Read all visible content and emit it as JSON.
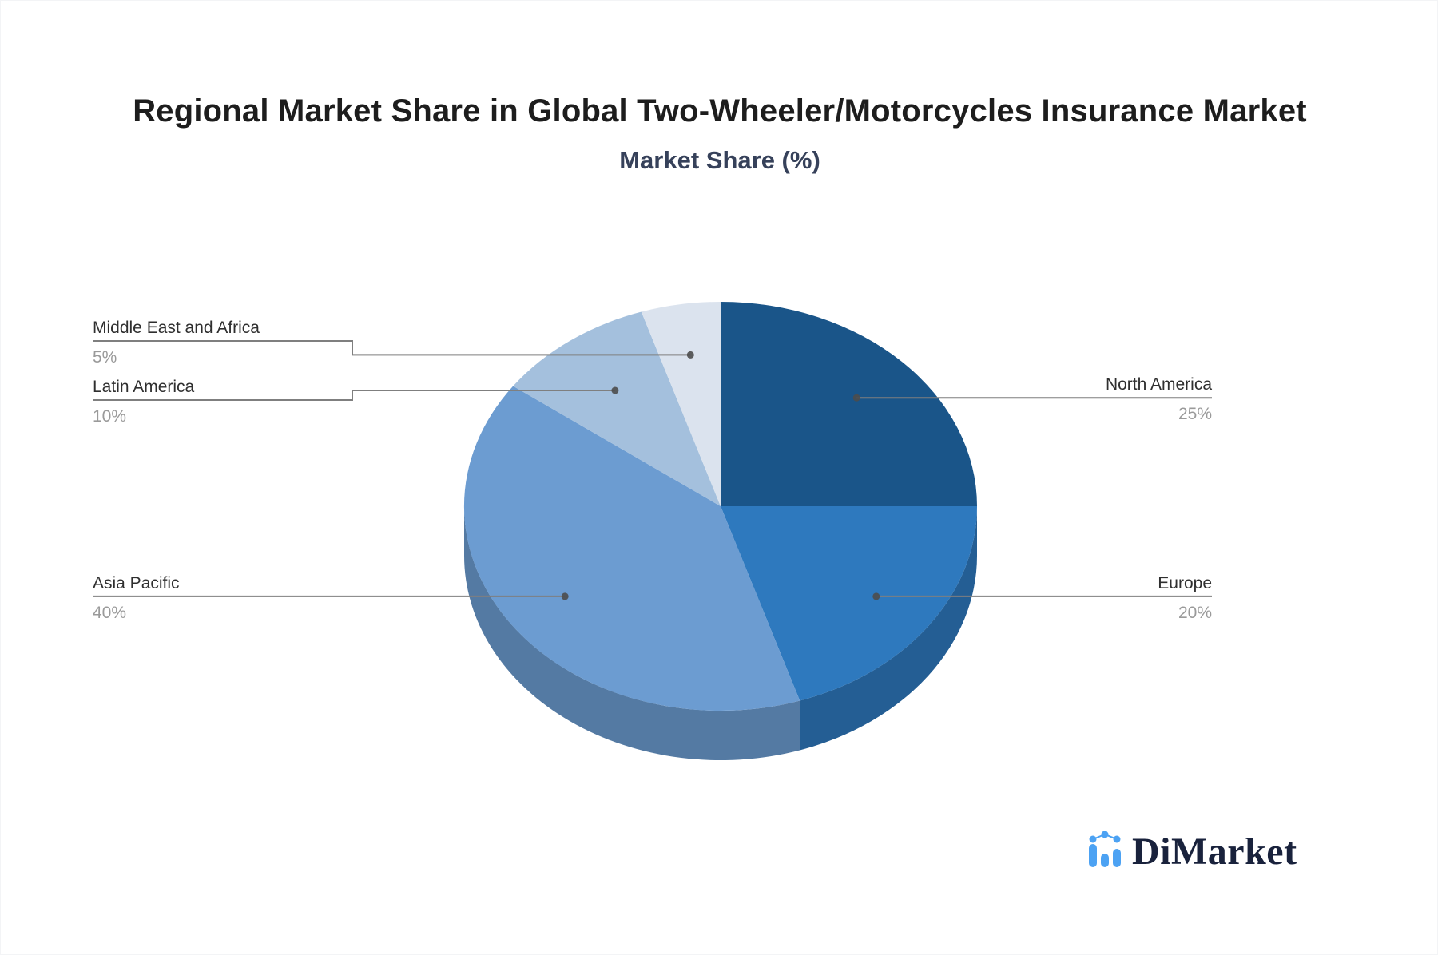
{
  "chart_data": {
    "type": "pie",
    "style": "3d-pie",
    "title": "Regional Market Share in Global Two-Wheeler/Motorcycles Insurance Market",
    "subtitle": "Market Share (%)",
    "unit": "%",
    "start_angle": "12-o-clock",
    "direction": "clockwise",
    "legend_position": "callout-labels",
    "slices": [
      {
        "label": "North America",
        "value": 25,
        "pct_label": "25%",
        "color": "#1A5589",
        "callout_side": "right"
      },
      {
        "label": "Europe",
        "value": 20,
        "pct_label": "20%",
        "color": "#2E79BE",
        "callout_side": "right"
      },
      {
        "label": "Asia Pacific",
        "value": 40,
        "pct_label": "40%",
        "color": "#6C9CD1",
        "callout_side": "left"
      },
      {
        "label": "Latin America",
        "value": 10,
        "pct_label": "10%",
        "color": "#A4C0DD",
        "callout_side": "left"
      },
      {
        "label": "Middle East and Africa",
        "value": 5,
        "pct_label": "5%",
        "color": "#DBE3EE",
        "callout_side": "left"
      }
    ]
  },
  "styles": {
    "connector_color": "#7f7f7f",
    "dot_color": "#4d4d4d",
    "label_color": "#2f2f2f",
    "pct_color": "#9a9a9a",
    "title_color": "#1d1d1d",
    "subtitle_color": "#36415a"
  },
  "logo": {
    "text": "DiMarket",
    "icon": "bar-chart-icon",
    "icon_color": "#4CA2F3",
    "text_color": "#19223c"
  }
}
